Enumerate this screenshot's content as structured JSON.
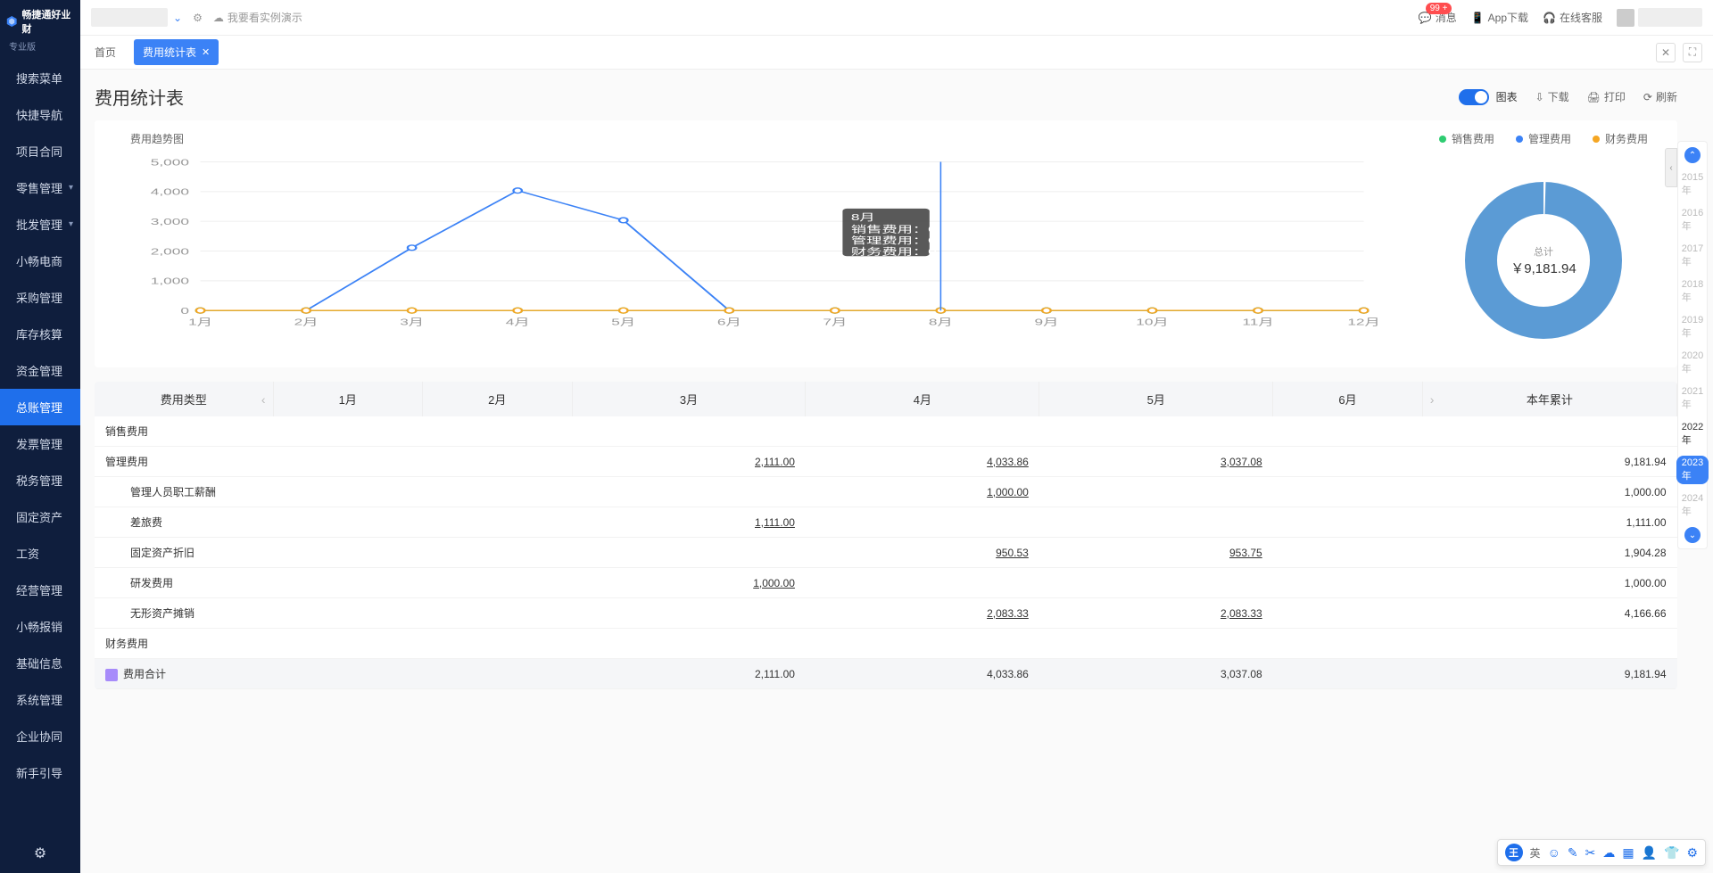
{
  "brand": {
    "name": "畅捷通好业财",
    "edition": "专业版"
  },
  "sidebar": {
    "items": [
      {
        "label": "搜索菜单",
        "expandable": false
      },
      {
        "label": "快捷导航",
        "expandable": false
      },
      {
        "label": "项目合同",
        "expandable": false
      },
      {
        "label": "零售管理",
        "expandable": true
      },
      {
        "label": "批发管理",
        "expandable": true
      },
      {
        "label": "小畅电商",
        "expandable": false
      },
      {
        "label": "采购管理",
        "expandable": false
      },
      {
        "label": "库存核算",
        "expandable": false
      },
      {
        "label": "资金管理",
        "expandable": false
      },
      {
        "label": "总账管理",
        "expandable": false,
        "active": true
      },
      {
        "label": "发票管理",
        "expandable": false
      },
      {
        "label": "税务管理",
        "expandable": false
      },
      {
        "label": "固定资产",
        "expandable": false
      },
      {
        "label": "工资",
        "expandable": false
      },
      {
        "label": "经营管理",
        "expandable": false
      },
      {
        "label": "小畅报销",
        "expandable": false
      },
      {
        "label": "基础信息",
        "expandable": false
      },
      {
        "label": "系统管理",
        "expandable": false
      },
      {
        "label": "企业协同",
        "expandable": false
      },
      {
        "label": "新手引导",
        "expandable": false
      }
    ]
  },
  "topbar": {
    "demo": "我要看实例演示",
    "actions": {
      "messages": {
        "label": "消息",
        "badge": "99 +"
      },
      "download": "App下载",
      "support": "在线客服"
    }
  },
  "tabs": {
    "home": "首页",
    "active": "费用统计表"
  },
  "page": {
    "title": "费用统计表",
    "actions": {
      "chart": "图表",
      "download": "下载",
      "print": "打印",
      "refresh": "刷新"
    }
  },
  "line_chart": {
    "title": "费用趋势图",
    "legend": [
      {
        "label": "销售费用",
        "color": "#2ecc71"
      },
      {
        "label": "管理费用",
        "color": "#3b82f6"
      },
      {
        "label": "财务费用",
        "color": "#f5a623"
      }
    ],
    "x_labels": [
      "1月",
      "2月",
      "3月",
      "4月",
      "5月",
      "6月",
      "7月",
      "8月",
      "9月",
      "10月",
      "11月",
      "12月"
    ],
    "y_ticks": [
      0,
      1000,
      2000,
      3000,
      4000,
      5000
    ],
    "y_max": 5000,
    "series": {
      "sales": [
        0,
        0,
        0,
        0,
        0,
        0,
        0,
        0,
        0,
        0,
        0,
        0
      ],
      "admin": [
        0,
        0,
        2111,
        4034,
        3037,
        0,
        0,
        0,
        0,
        0,
        0,
        0
      ],
      "finance": [
        0,
        0,
        0,
        0,
        0,
        0,
        0,
        0,
        0,
        0,
        0,
        0
      ]
    },
    "tooltip": {
      "x_index": 7,
      "title": "8月",
      "lines": [
        "销售费用：0",
        "管理费用：0",
        "财务费用：0"
      ]
    },
    "grid_color": "#eeeeee",
    "axis_color": "#999999"
  },
  "donut": {
    "label": "总计",
    "value": "￥9,181.94",
    "color": "#5b9bd5",
    "background": "#ffffff"
  },
  "year_rail": {
    "years": [
      "2015年",
      "2016年",
      "2017年",
      "2018年",
      "2019年",
      "2020年",
      "2021年",
      "2022年",
      "2023年",
      "2024年"
    ],
    "current": "2022年",
    "active": "2023年"
  },
  "table": {
    "header": {
      "type": "费用类型",
      "months": [
        "1月",
        "2月",
        "3月",
        "4月",
        "5月",
        "6月"
      ],
      "total": "本年累计"
    },
    "rows": [
      {
        "label": "销售费用",
        "indent": 0,
        "vals": [
          "",
          "",
          "",
          "",
          "",
          ""
        ],
        "total": ""
      },
      {
        "label": "管理费用",
        "indent": 0,
        "vals": [
          "",
          "",
          "2,111.00",
          "4,033.86",
          "3,037.08",
          ""
        ],
        "total": "9,181.94",
        "link": true
      },
      {
        "label": "管理人员职工薪酬",
        "indent": 1,
        "vals": [
          "",
          "",
          "",
          "1,000.00",
          "",
          ""
        ],
        "total": "1,000.00",
        "link": true
      },
      {
        "label": "差旅费",
        "indent": 1,
        "vals": [
          "",
          "",
          "1,111.00",
          "",
          "",
          ""
        ],
        "total": "1,111.00",
        "link": true
      },
      {
        "label": "固定资产折旧",
        "indent": 1,
        "vals": [
          "",
          "",
          "",
          "950.53",
          "953.75",
          ""
        ],
        "total": "1,904.28",
        "link": true
      },
      {
        "label": "研发费用",
        "indent": 1,
        "vals": [
          "",
          "",
          "1,000.00",
          "",
          "",
          ""
        ],
        "total": "1,000.00",
        "link": true
      },
      {
        "label": "无形资产摊销",
        "indent": 1,
        "vals": [
          "",
          "",
          "",
          "2,083.33",
          "2,083.33",
          ""
        ],
        "total": "4,166.66",
        "link": true
      },
      {
        "label": "财务费用",
        "indent": 0,
        "vals": [
          "",
          "",
          "",
          "",
          "",
          ""
        ],
        "total": ""
      }
    ],
    "total_row": {
      "label": "费用合计",
      "vals": [
        "",
        "",
        "2,111.00",
        "4,033.86",
        "3,037.08",
        ""
      ],
      "total": "9,181.94"
    }
  },
  "ime": {
    "logo": "王",
    "lang": "英"
  }
}
